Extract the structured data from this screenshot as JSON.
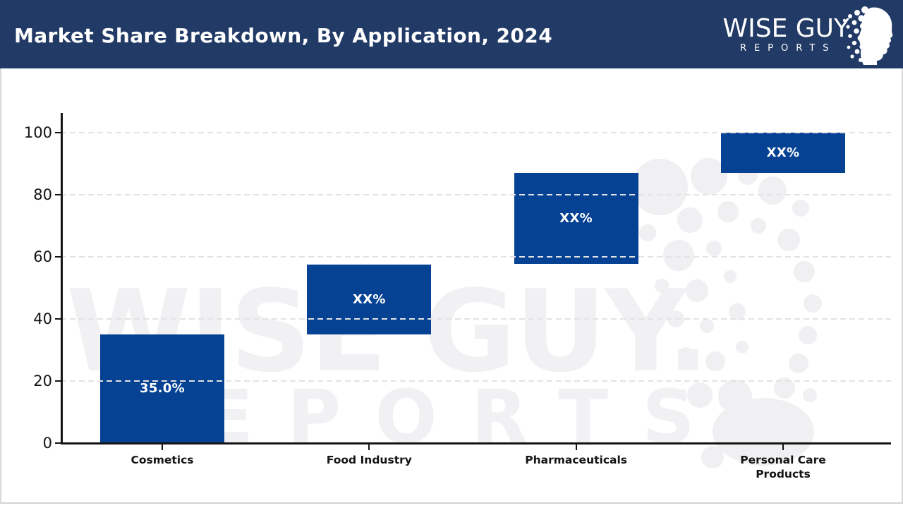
{
  "header": {
    "title": "Market Share Breakdown, By Application, 2024",
    "logo": {
      "line1": "WISE GUY",
      "line2": "REPORTS"
    }
  },
  "watermark": {
    "line1": "WISE GUY.",
    "line2": "REPORTS"
  },
  "colors": {
    "header_bg": "#213a66",
    "title_text": "#ffffff",
    "bar": "#064294",
    "bar_label": "#ffffff",
    "gridline": "#e3e3e4",
    "axis": "#141414",
    "watermark": "#f1f1f3"
  },
  "chart_data": {
    "type": "bar",
    "variant": "waterfall",
    "title": "Market Share Breakdown, By Application, 2024",
    "xlabel": "",
    "ylabel": "",
    "categories": [
      "Cosmetics",
      "Food Industry",
      "Pharmaceuticals",
      "Personal Care Products"
    ],
    "series": [
      {
        "name": "Market Share",
        "segments": [
          {
            "category": "Cosmetics",
            "start": 0,
            "end": 35,
            "label": "35.0%"
          },
          {
            "category": "Food Industry",
            "start": 35,
            "end": 57.5,
            "label": "XX%"
          },
          {
            "category": "Pharmaceuticals",
            "start": 57.5,
            "end": 87,
            "label": "XX%"
          },
          {
            "category": "Personal Care Products",
            "start": 87,
            "end": 100,
            "label": "XX%"
          }
        ]
      }
    ],
    "displayed_values": [
      "35.0%",
      "XX%",
      "XX%",
      "XX%"
    ],
    "ylim": [
      0,
      100
    ],
    "yticks": [
      0,
      20,
      40,
      60,
      80,
      100
    ],
    "grid": "horizontal-dashed",
    "legend": "none"
  }
}
